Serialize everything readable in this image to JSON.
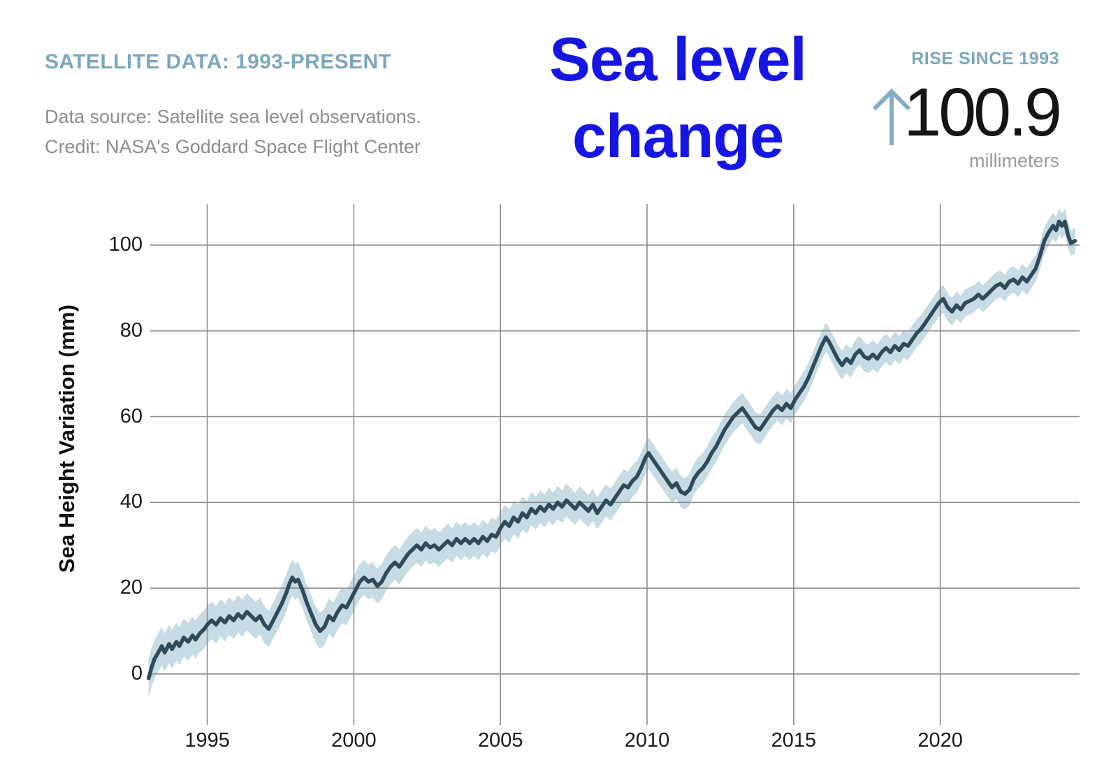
{
  "header": {
    "kicker": "SATELLITE DATA: 1993-PRESENT",
    "source_line1": "Data source: Satellite sea level observations.",
    "source_line2": "Credit: NASA's Goddard Space Flight Center",
    "title_line1": "Sea level",
    "title_line2": "change",
    "stat": {
      "label": "RISE SINCE 1993",
      "value": "100.9",
      "unit": "millimeters",
      "arrow_icon": "up-arrow",
      "arrow_color": "#85AEC3"
    }
  },
  "colors": {
    "kicker_teal": "#7CA7BC",
    "title_blue": "#1615E3",
    "stat_black": "#151515",
    "muted_gray": "#8D8D8D"
  },
  "chart_data": {
    "type": "line",
    "title": "Sea level change",
    "xlabel": "",
    "ylabel": "Sea Height Variation (mm)",
    "x_ticks": [
      1995,
      2000,
      2005,
      2010,
      2015,
      2020
    ],
    "y_ticks": [
      0,
      20,
      40,
      60,
      80,
      100
    ],
    "xlim": [
      1993.02,
      2024.75
    ],
    "ylim": [
      -11.9,
      109.6
    ],
    "grid": true,
    "legend": false,
    "line_color": "#2F4B59",
    "band_color": "#C6DBE4",
    "grid_color": "#8C8C8C",
    "uncertainty_mm": {
      "start": 4.5,
      "end": 3.0
    },
    "series": [
      {
        "name": "Sea height variation (mm), smoothed satellite record with uncertainty band",
        "points": [
          [
            1993.0,
            -1.0
          ],
          [
            1993.1,
            1.5
          ],
          [
            1993.2,
            3.5
          ],
          [
            1993.33,
            5.0
          ],
          [
            1993.45,
            6.5
          ],
          [
            1993.55,
            5.0
          ],
          [
            1993.7,
            7.0
          ],
          [
            1993.8,
            5.8
          ],
          [
            1993.95,
            7.5
          ],
          [
            1994.05,
            6.5
          ],
          [
            1994.2,
            8.5
          ],
          [
            1994.35,
            7.5
          ],
          [
            1994.5,
            9.0
          ],
          [
            1994.6,
            8.0
          ],
          [
            1994.75,
            9.5
          ],
          [
            1994.9,
            10.5
          ],
          [
            1995.0,
            11.5
          ],
          [
            1995.15,
            12.5
          ],
          [
            1995.3,
            11.5
          ],
          [
            1995.45,
            13.0
          ],
          [
            1995.6,
            12.0
          ],
          [
            1995.75,
            13.5
          ],
          [
            1995.9,
            12.5
          ],
          [
            1996.05,
            14.0
          ],
          [
            1996.2,
            13.0
          ],
          [
            1996.35,
            14.5
          ],
          [
            1996.5,
            13.5
          ],
          [
            1996.65,
            12.5
          ],
          [
            1996.8,
            13.5
          ],
          [
            1996.95,
            11.5
          ],
          [
            1997.1,
            10.5
          ],
          [
            1997.25,
            12.5
          ],
          [
            1997.4,
            14.5
          ],
          [
            1997.55,
            16.5
          ],
          [
            1997.7,
            19.0
          ],
          [
            1997.8,
            21.0
          ],
          [
            1997.9,
            22.5
          ],
          [
            1998.0,
            21.5
          ],
          [
            1998.1,
            22.0
          ],
          [
            1998.25,
            19.5
          ],
          [
            1998.4,
            16.5
          ],
          [
            1998.55,
            14.0
          ],
          [
            1998.7,
            11.5
          ],
          [
            1998.85,
            10.0
          ],
          [
            1999.0,
            11.0
          ],
          [
            1999.15,
            13.5
          ],
          [
            1999.3,
            12.5
          ],
          [
            1999.45,
            14.5
          ],
          [
            1999.6,
            16.0
          ],
          [
            1999.75,
            15.5
          ],
          [
            1999.9,
            17.5
          ],
          [
            2000.05,
            19.5
          ],
          [
            2000.2,
            21.5
          ],
          [
            2000.35,
            22.5
          ],
          [
            2000.5,
            21.5
          ],
          [
            2000.65,
            22.0
          ],
          [
            2000.8,
            20.5
          ],
          [
            2000.95,
            21.5
          ],
          [
            2001.1,
            23.5
          ],
          [
            2001.25,
            25.0
          ],
          [
            2001.4,
            26.0
          ],
          [
            2001.55,
            25.0
          ],
          [
            2001.7,
            26.5
          ],
          [
            2001.85,
            28.0
          ],
          [
            2002.0,
            29.0
          ],
          [
            2002.15,
            30.0
          ],
          [
            2002.3,
            29.0
          ],
          [
            2002.45,
            30.5
          ],
          [
            2002.6,
            29.5
          ],
          [
            2002.75,
            30.0
          ],
          [
            2002.9,
            29.0
          ],
          [
            2003.05,
            30.0
          ],
          [
            2003.2,
            31.0
          ],
          [
            2003.35,
            30.0
          ],
          [
            2003.5,
            31.5
          ],
          [
            2003.65,
            30.5
          ],
          [
            2003.8,
            31.5
          ],
          [
            2003.95,
            30.5
          ],
          [
            2004.1,
            31.5
          ],
          [
            2004.25,
            30.5
          ],
          [
            2004.4,
            32.0
          ],
          [
            2004.55,
            31.0
          ],
          [
            2004.7,
            32.5
          ],
          [
            2004.85,
            32.0
          ],
          [
            2005.0,
            34.0
          ],
          [
            2005.15,
            35.5
          ],
          [
            2005.3,
            34.5
          ],
          [
            2005.45,
            36.5
          ],
          [
            2005.6,
            35.5
          ],
          [
            2005.75,
            37.5
          ],
          [
            2005.9,
            36.5
          ],
          [
            2006.05,
            38.5
          ],
          [
            2006.2,
            37.5
          ],
          [
            2006.35,
            39.0
          ],
          [
            2006.5,
            38.0
          ],
          [
            2006.65,
            39.5
          ],
          [
            2006.8,
            38.5
          ],
          [
            2006.95,
            40.0
          ],
          [
            2007.1,
            39.0
          ],
          [
            2007.25,
            40.5
          ],
          [
            2007.4,
            39.5
          ],
          [
            2007.55,
            38.5
          ],
          [
            2007.7,
            40.0
          ],
          [
            2007.85,
            39.0
          ],
          [
            2008.0,
            38.0
          ],
          [
            2008.15,
            39.5
          ],
          [
            2008.3,
            37.5
          ],
          [
            2008.45,
            39.0
          ],
          [
            2008.6,
            40.5
          ],
          [
            2008.75,
            39.5
          ],
          [
            2008.9,
            41.0
          ],
          [
            2009.05,
            42.5
          ],
          [
            2009.2,
            44.0
          ],
          [
            2009.35,
            43.5
          ],
          [
            2009.5,
            45.0
          ],
          [
            2009.65,
            46.0
          ],
          [
            2009.8,
            48.0
          ],
          [
            2009.95,
            50.5
          ],
          [
            2010.05,
            51.5
          ],
          [
            2010.25,
            49.5
          ],
          [
            2010.4,
            48.0
          ],
          [
            2010.55,
            46.5
          ],
          [
            2010.7,
            45.0
          ],
          [
            2010.85,
            43.5
          ],
          [
            2011.0,
            44.5
          ],
          [
            2011.15,
            42.5
          ],
          [
            2011.3,
            42.0
          ],
          [
            2011.45,
            43.0
          ],
          [
            2011.6,
            45.5
          ],
          [
            2011.75,
            47.0
          ],
          [
            2011.9,
            48.0
          ],
          [
            2012.05,
            49.5
          ],
          [
            2012.2,
            51.5
          ],
          [
            2012.35,
            53.0
          ],
          [
            2012.5,
            55.0
          ],
          [
            2012.65,
            57.0
          ],
          [
            2012.8,
            58.5
          ],
          [
            2012.95,
            60.0
          ],
          [
            2013.1,
            61.0
          ],
          [
            2013.25,
            62.0
          ],
          [
            2013.4,
            60.5
          ],
          [
            2013.55,
            59.0
          ],
          [
            2013.7,
            57.5
          ],
          [
            2013.85,
            57.0
          ],
          [
            2014.0,
            58.5
          ],
          [
            2014.15,
            60.0
          ],
          [
            2014.3,
            61.5
          ],
          [
            2014.45,
            62.5
          ],
          [
            2014.6,
            61.5
          ],
          [
            2014.75,
            63.0
          ],
          [
            2014.9,
            62.0
          ],
          [
            2015.05,
            64.0
          ],
          [
            2015.2,
            65.5
          ],
          [
            2015.35,
            67.0
          ],
          [
            2015.5,
            69.0
          ],
          [
            2015.65,
            71.5
          ],
          [
            2015.8,
            74.0
          ],
          [
            2015.95,
            76.5
          ],
          [
            2016.1,
            78.5
          ],
          [
            2016.2,
            77.5
          ],
          [
            2016.35,
            75.5
          ],
          [
            2016.5,
            73.5
          ],
          [
            2016.65,
            72.0
          ],
          [
            2016.8,
            73.5
          ],
          [
            2016.95,
            72.5
          ],
          [
            2017.1,
            74.5
          ],
          [
            2017.25,
            75.5
          ],
          [
            2017.4,
            74.0
          ],
          [
            2017.55,
            73.5
          ],
          [
            2017.7,
            74.5
          ],
          [
            2017.85,
            73.5
          ],
          [
            2018.0,
            75.0
          ],
          [
            2018.15,
            76.0
          ],
          [
            2018.3,
            75.0
          ],
          [
            2018.45,
            76.5
          ],
          [
            2018.6,
            75.5
          ],
          [
            2018.75,
            77.0
          ],
          [
            2018.9,
            76.5
          ],
          [
            2019.05,
            78.0
          ],
          [
            2019.2,
            79.5
          ],
          [
            2019.35,
            80.5
          ],
          [
            2019.5,
            82.0
          ],
          [
            2019.65,
            83.5
          ],
          [
            2019.8,
            85.0
          ],
          [
            2019.95,
            86.5
          ],
          [
            2020.1,
            87.5
          ],
          [
            2020.25,
            85.5
          ],
          [
            2020.4,
            84.5
          ],
          [
            2020.55,
            86.0
          ],
          [
            2020.7,
            85.0
          ],
          [
            2020.85,
            86.5
          ],
          [
            2021.0,
            87.0
          ],
          [
            2021.15,
            87.5
          ],
          [
            2021.3,
            88.5
          ],
          [
            2021.45,
            87.5
          ],
          [
            2021.6,
            88.5
          ],
          [
            2021.75,
            89.5
          ],
          [
            2021.9,
            90.5
          ],
          [
            2022.05,
            91.0
          ],
          [
            2022.2,
            90.0
          ],
          [
            2022.35,
            91.5
          ],
          [
            2022.5,
            92.0
          ],
          [
            2022.65,
            91.0
          ],
          [
            2022.8,
            92.5
          ],
          [
            2022.95,
            91.5
          ],
          [
            2023.1,
            93.0
          ],
          [
            2023.25,
            94.5
          ],
          [
            2023.4,
            97.5
          ],
          [
            2023.55,
            101.0
          ],
          [
            2023.7,
            103.0
          ],
          [
            2023.85,
            104.5
          ],
          [
            2023.95,
            103.5
          ],
          [
            2024.05,
            105.5
          ],
          [
            2024.15,
            104.5
          ],
          [
            2024.25,
            105.5
          ],
          [
            2024.35,
            102.5
          ],
          [
            2024.45,
            100.5
          ],
          [
            2024.6,
            101.0
          ]
        ]
      }
    ]
  }
}
